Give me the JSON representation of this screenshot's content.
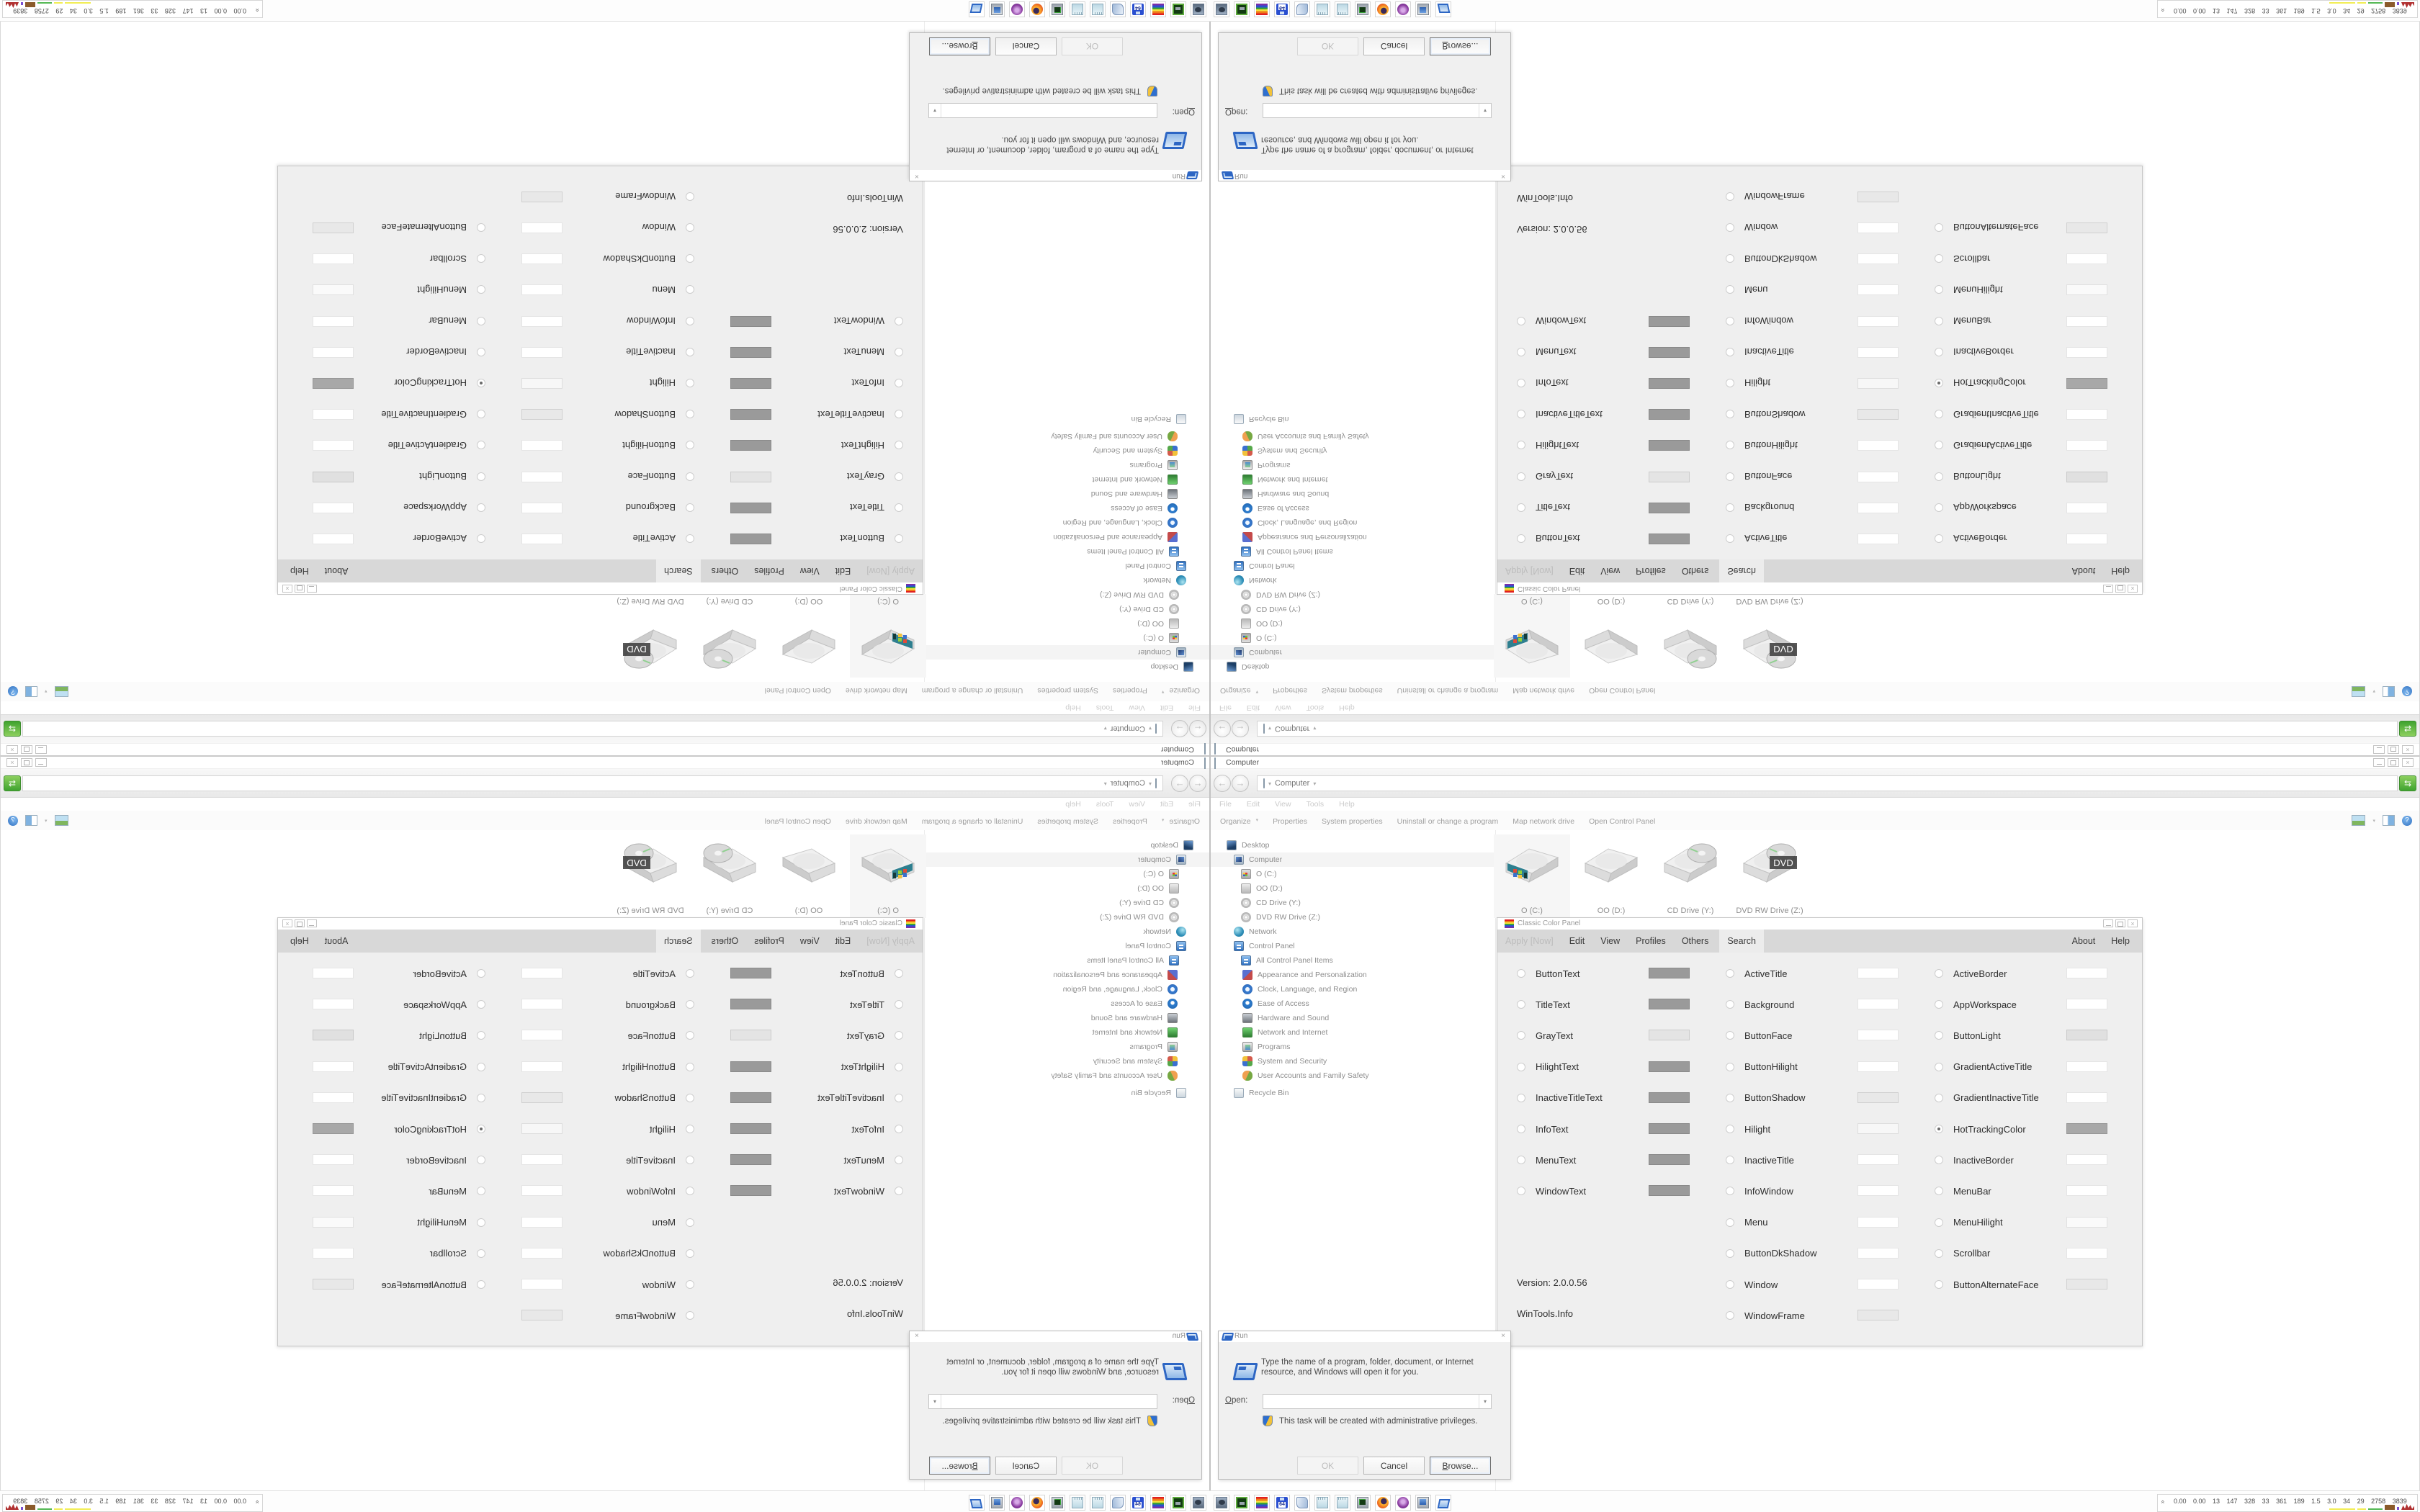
{
  "glyphs": {
    "close": "×",
    "back": "←",
    "fwd": "→",
    "dd": "▾",
    "help": "?",
    "refresh": "⇆",
    "expand": "«"
  },
  "explorer": {
    "title": "Computer",
    "address": {
      "location": "Computer"
    },
    "menu_items": [
      "File",
      "Edit",
      "View",
      "Tools",
      "Help"
    ],
    "toolbar_items": [
      "Organize",
      "Properties",
      "System properties",
      "Uninstall or change a program",
      "Map network drive",
      "Open Control Panel"
    ],
    "nav_tree": [
      {
        "label": "Desktop",
        "icon": "desktop",
        "level": 0
      },
      {
        "label": "Computer",
        "icon": "computer",
        "level": 1,
        "selected": true
      },
      {
        "label": "O (C:)",
        "icon": "hdd-win",
        "level": 2
      },
      {
        "label": "OO (D:)",
        "icon": "hdd",
        "level": 2
      },
      {
        "label": "CD Drive (Y:)",
        "icon": "cd",
        "level": 2
      },
      {
        "label": "DVD RW Drive (Z:)",
        "icon": "dvd",
        "level": 2
      },
      {
        "label": "Network",
        "icon": "globe",
        "level": 1
      },
      {
        "label": "Control Panel",
        "icon": "cpanel",
        "level": 1
      },
      {
        "label": "All Control Panel Items",
        "icon": "cpanel",
        "level": 2
      },
      {
        "label": "Appearance and Personalization",
        "icon": "appearance",
        "level": 3
      },
      {
        "label": "Clock, Language, and Region",
        "icon": "clock",
        "level": 3
      },
      {
        "label": "Ease of Access",
        "icon": "ease",
        "level": 3
      },
      {
        "label": "Hardware and Sound",
        "icon": "hardware",
        "level": 3
      },
      {
        "label": "Network and Internet",
        "icon": "netinternet",
        "level": 3
      },
      {
        "label": "Programs",
        "icon": "programs",
        "level": 3
      },
      {
        "label": "System and Security",
        "icon": "syssec",
        "level": 3
      },
      {
        "label": "User Accounts and Family Safety",
        "icon": "users",
        "level": 3
      },
      {
        "label": "Recycle Bin",
        "icon": "recycle",
        "level": 1,
        "gap": 4
      }
    ],
    "drives": [
      {
        "label": "O (C:)",
        "icon": "hdd-windows",
        "selected": true
      },
      {
        "label": "OO (D:)",
        "icon": "hdd"
      },
      {
        "label": "CD Drive (Y:)",
        "icon": "cd"
      },
      {
        "label": "DVD RW Drive (Z:)",
        "icon": "dvd",
        "badge": "DVD"
      }
    ]
  },
  "color_panel": {
    "title": "Classic Color Panel",
    "menu": {
      "apply": "Apply [Now]",
      "items": [
        "Edit",
        "View",
        "Profiles",
        "Others"
      ],
      "search": "Search",
      "right": [
        "About",
        "Help"
      ]
    },
    "version": "Version: 2.0.0.56",
    "site": "WinTools.Info",
    "selected_color": "HotTrackingColor",
    "columns": [
      [
        {
          "label": "ButtonText",
          "swatch": "#9a9a9a"
        },
        {
          "label": "TitleText",
          "swatch": "#9a9a9a"
        },
        {
          "label": "GrayText",
          "swatch": "#e4e4e4"
        },
        {
          "label": "HilightText",
          "swatch": "#9a9a9a"
        },
        {
          "label": "InactiveTitleText",
          "swatch": "#9a9a9a"
        },
        {
          "label": "InfoText",
          "swatch": "#9a9a9a"
        },
        {
          "label": "MenuText",
          "swatch": "#9a9a9a"
        },
        {
          "label": "WindowText",
          "swatch": "#9a9a9a"
        }
      ],
      [
        {
          "label": "ActiveTitle",
          "swatch": "#ffffff"
        },
        {
          "label": "Background",
          "swatch": "#ffffff"
        },
        {
          "label": "ButtonFace",
          "swatch": "#ffffff"
        },
        {
          "label": "ButtonHilight",
          "swatch": "#ffffff"
        },
        {
          "label": "ButtonShadow",
          "swatch": "#e8e8e8"
        },
        {
          "label": "Hilight",
          "swatch": "#f7f7f7"
        },
        {
          "label": "InactiveTitle",
          "swatch": "#ffffff"
        },
        {
          "label": "InfoWindow",
          "swatch": "#ffffff"
        },
        {
          "label": "Menu",
          "swatch": "#ffffff"
        },
        {
          "label": "ButtonDkShadow",
          "swatch": "#ffffff"
        },
        {
          "label": "Window",
          "swatch": "#ffffff"
        },
        {
          "label": "WindowFrame",
          "swatch": "#e8e8e8"
        }
      ],
      [
        {
          "label": "ActiveBorder",
          "swatch": "#ffffff"
        },
        {
          "label": "AppWorkspace",
          "swatch": "#ffffff"
        },
        {
          "label": "ButtonLight",
          "swatch": "#e0e0e0"
        },
        {
          "label": "GradientActiveTitle",
          "swatch": "#ffffff"
        },
        {
          "label": "GradientInactiveTitle",
          "swatch": "#ffffff"
        },
        {
          "label": "HotTrackingColor",
          "swatch": "#a8a8a8",
          "selected": true
        },
        {
          "label": "InactiveBorder",
          "swatch": "#ffffff"
        },
        {
          "label": "MenuBar",
          "swatch": "#ffffff"
        },
        {
          "label": "MenuHilight",
          "swatch": "#fafafa"
        },
        {
          "label": "Scrollbar",
          "swatch": "#ffffff"
        },
        {
          "label": "ButtonAlternateFace",
          "swatch": "#e8e8e8"
        }
      ]
    ]
  },
  "run_dialog": {
    "title": "Run",
    "message": "Type the name of a program, folder, document, or Internet resource, and Windows will open it for you.",
    "open_label": "Open:",
    "open_value": "",
    "admin_note": "This task will be created with administrative privileges.",
    "buttons": [
      {
        "label": "OK",
        "disabled": true
      },
      {
        "label": "Cancel"
      },
      {
        "label": "Browse...",
        "focused": true,
        "mnemonic": true
      }
    ]
  },
  "taskbar": {
    "launchers": [
      "system-monitor",
      "disk-tool",
      "color-panel",
      "floppy-64",
      "script",
      "notepad",
      "notepad",
      "console",
      "firefox",
      "purple-app",
      "display",
      "run"
    ],
    "floppy_glyph": "64",
    "stats": "0.00 0.00 13 147 328 33 361 189 1.5 3.0 34 29 2758 3839",
    "sparklines": [
      {
        "color": "#f2ee54",
        "w": 36,
        "h": 2
      },
      {
        "color": "#f2ee54",
        "w": 12,
        "h": 2
      },
      {
        "color": "#54b854",
        "w": 20,
        "h": 2
      },
      {
        "color": "#8a5a2a",
        "w": 14,
        "h": 7
      },
      {
        "color": "#7a4fd0",
        "w": 3,
        "h": 4
      },
      {
        "color": "#b03030",
        "w": 18,
        "h": 9,
        "type": "peaks"
      }
    ]
  }
}
